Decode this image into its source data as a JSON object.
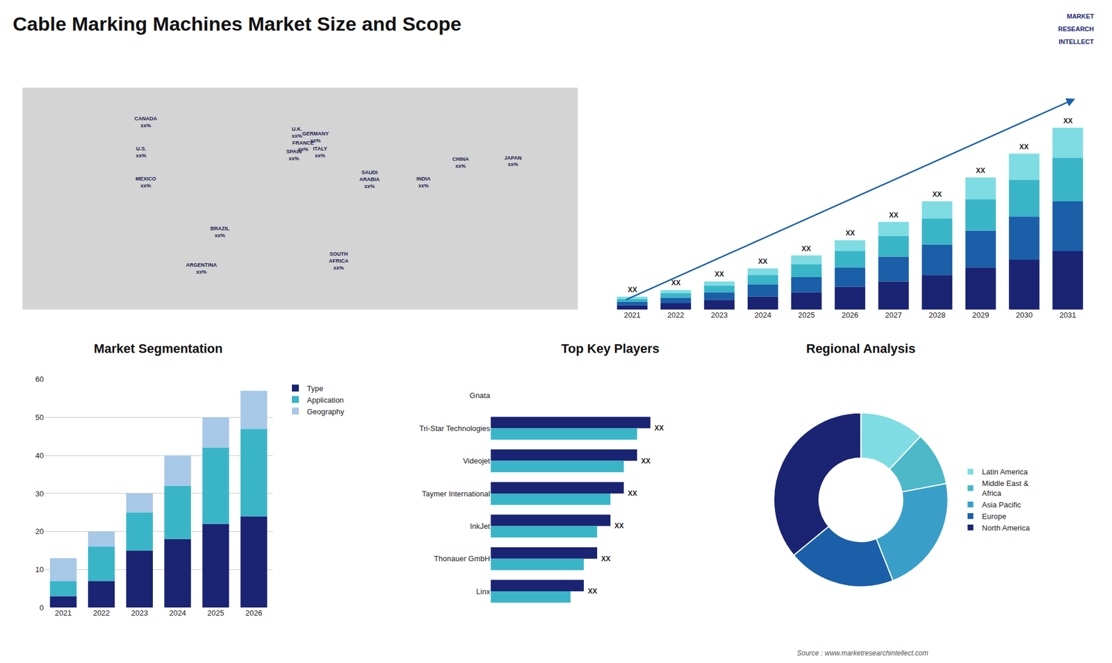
{
  "title": "Cable Marking Machines Market Size and Scope",
  "annotations": [
    "Source : www.marketresearchintellect.com",
    "MARKET",
    "RESEARCH",
    "INTELLECT"
  ],
  "chart_data": [
    {
      "type": "map",
      "labels": [
        "CANADA\nxx%",
        "U.S.\nxx%",
        "MEXICO\nxx%",
        "BRAZIL\nxx%",
        "ARGENTINA\nxx%",
        "U.K.\nxx%",
        "FRANCE\nxx%",
        "SPAIN\nxx%",
        "GERMANY\nxx%",
        "ITALY\nxx%",
        "SAUDI\nARABIA\nxx%",
        "SOUTH\nAFRICA\nxx%",
        "CHINA\nxx%",
        "INDIA\nxx%",
        "JAPAN\nxx%"
      ],
      "x": [
        -100,
        -103,
        -100,
        -52,
        -64,
        -2,
        2,
        -4,
        10,
        13,
        45,
        25,
        104,
        80,
        138
      ],
      "y": [
        62,
        42,
        22,
        -11,
        -35,
        55,
        46,
        40,
        52,
        42,
        24,
        -30,
        35,
        22,
        36
      ],
      "xlim": [
        -180,
        180
      ],
      "ylim": [
        -62,
        85
      ],
      "tick_labels": false
    },
    {
      "type": "bar",
      "stacked": true,
      "categories": [
        "2021",
        "2022",
        "2023",
        "2024",
        "2025",
        "2026",
        "2027",
        "2028",
        "2029",
        "2030",
        "2031"
      ],
      "series": [
        {
          "color": "#1a2472",
          "values": [
            2,
            3,
            4.5,
            6,
            8,
            10.5,
            13,
            16,
            19.5,
            23,
            27
          ]
        },
        {
          "color": "#1a5fa8",
          "values": [
            1.5,
            2.5,
            3.5,
            5.5,
            7,
            9,
            11.5,
            14,
            17,
            20,
            23
          ]
        },
        {
          "color": "#3ab5c8",
          "values": [
            1.5,
            2,
            3,
            4.5,
            6,
            7.5,
            9.5,
            12,
            14.5,
            17,
            20
          ]
        },
        {
          "color": "#7edce2",
          "values": [
            1,
            1.5,
            2,
            3,
            4,
            5,
            6.5,
            8,
            10,
            12,
            14
          ]
        }
      ],
      "ylim": [
        0,
        102.48
      ],
      "tick_labels": "x",
      "annotations": [
        "XX",
        "XX",
        "XX",
        "XX",
        "XX",
        "XX",
        "XX",
        "XX",
        "XX",
        "XX",
        "XX"
      ]
    },
    {
      "type": "bar",
      "stacked": true,
      "title": "Market Segmentation",
      "categories": [
        "2021",
        "2022",
        "2023",
        "2024",
        "2025",
        "2026"
      ],
      "series": [
        {
          "name": "Type",
          "color": "#1a2472",
          "values": [
            3,
            7,
            15,
            18,
            22,
            24
          ]
        },
        {
          "name": "Application",
          "color": "#3ab5c8",
          "values": [
            4,
            9,
            10,
            14,
            20,
            23
          ]
        },
        {
          "name": "Geography",
          "color": "#a8c8e8",
          "values": [
            6,
            4,
            5,
            8,
            8,
            10
          ]
        }
      ],
      "ylim": [
        0,
        60
      ],
      "yticks": [
        0,
        10,
        20,
        30,
        40,
        50,
        60
      ],
      "grid": true,
      "legend": "right"
    },
    {
      "type": "bar",
      "orientation": "horizontal",
      "title": "Top Key Players",
      "categories": [
        "Gnata",
        "Tri-Star Technologies",
        "Videojet",
        "Taymer International",
        "InkJet",
        "Thonauer GmbH",
        "Linx"
      ],
      "series": [
        {
          "color": "#1a2472",
          "values": [
            0.0,
            6.0,
            5.5,
            5.0,
            4.5,
            4.0,
            3.5
          ]
        },
        {
          "color": "#3ab5c8",
          "values": [
            0.0,
            5.5,
            5.0,
            4.5,
            4.0,
            3.5,
            3.0
          ]
        }
      ],
      "xlim": [
        0,
        9
      ],
      "tick_labels": "y",
      "annotations": [
        null,
        "XX",
        "XX",
        "XX",
        "XX",
        "XX",
        "XX"
      ]
    },
    {
      "type": "pie",
      "title": "Regional Analysis",
      "categories": [
        "Latin America",
        "Middle East &\nAfrica",
        "Asia Pacific",
        "Europe",
        "North America"
      ],
      "values": [
        12,
        10,
        22,
        20,
        36
      ],
      "colors": [
        "#7edce2",
        "#4db8c8",
        "#3a9fc8",
        "#1a5fa8",
        "#1a2472"
      ],
      "legend": "right"
    }
  ]
}
